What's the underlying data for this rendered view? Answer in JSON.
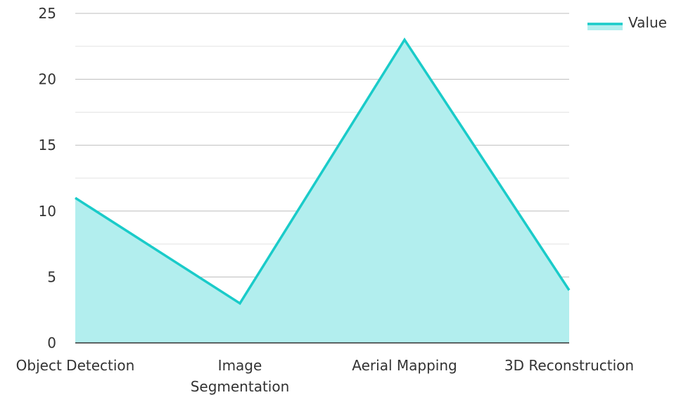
{
  "chart_data": {
    "type": "area",
    "categories": [
      "Object Detection",
      "Image Segmentation",
      "Aerial Mapping",
      "3D Reconstruction"
    ],
    "category_lines": [
      [
        "Object Detection"
      ],
      [
        "Image",
        "Segmentation"
      ],
      [
        "Aerial Mapping"
      ],
      [
        "3D Reconstruction"
      ]
    ],
    "series": [
      {
        "name": "Value",
        "values": [
          11,
          3,
          23,
          4
        ]
      }
    ],
    "yticks": [
      "0",
      "5",
      "10",
      "15",
      "20",
      "25"
    ],
    "ylim": [
      0,
      25
    ],
    "grid": true,
    "legend": "top-right",
    "colors": {
      "line": "#1ACBC9",
      "fill": "#B2EEEE",
      "grid_major": "#BDBDBD",
      "grid_minor": "#E3E3E3",
      "axis": "#333333"
    }
  }
}
